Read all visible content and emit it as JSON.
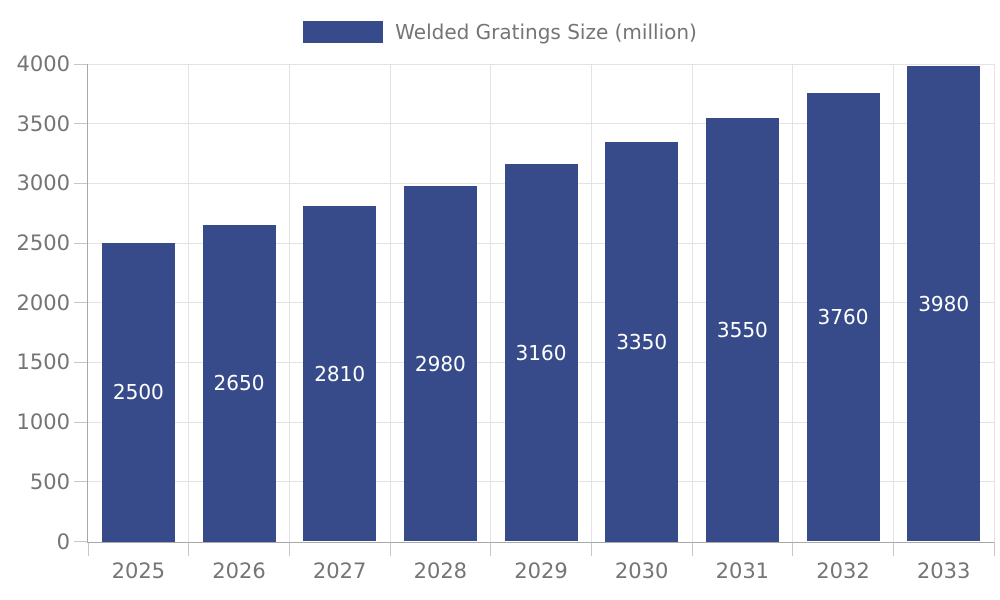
{
  "legend": {
    "label": "Welded Gratings Size (million)"
  },
  "chart_data": {
    "type": "bar",
    "title": "",
    "categories": [
      "2025",
      "2026",
      "2027",
      "2028",
      "2029",
      "2030",
      "2031",
      "2032",
      "2033"
    ],
    "series": [
      {
        "name": "Welded Gratings Size (million)",
        "values": [
          2500,
          2650,
          2810,
          2980,
          3160,
          3350,
          3550,
          3760,
          3980
        ]
      }
    ],
    "xlabel": "",
    "ylabel": "",
    "ylim": [
      0,
      4000
    ],
    "y_ticks": [
      0,
      500,
      1000,
      1500,
      2000,
      2500,
      3000,
      3500,
      4000
    ],
    "grid": true,
    "legend_position": "top-center",
    "bar_color": "#374B8A",
    "bar_label_color": "#FFFFFF",
    "axis_text_color": "#757575",
    "gridline_color": "#e3e3e3",
    "axis_line_color": "#a9a9a9"
  }
}
